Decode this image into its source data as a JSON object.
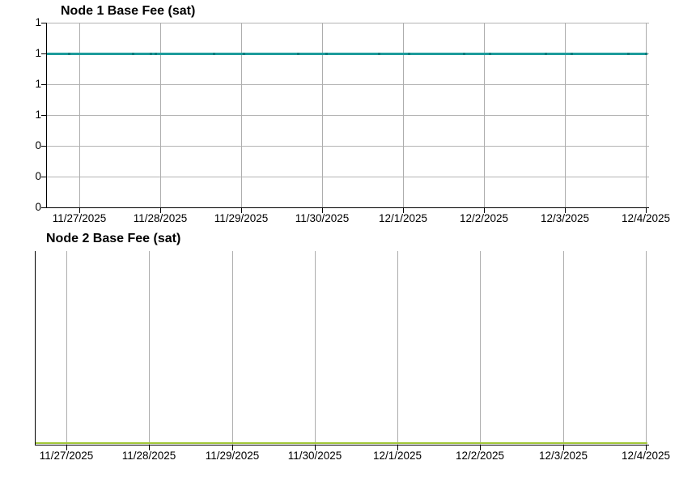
{
  "page": {
    "background": "#ffffff",
    "text_color": "#000000",
    "grid_color": "#b3b3b3",
    "axis_color": "#000000"
  },
  "chart_data": [
    {
      "type": "line",
      "id": "node1-base-fee",
      "title": "Node 1 Base Fee (sat)",
      "x": [
        "11/27/2025",
        "11/28/2025",
        "11/29/2025",
        "11/30/2025",
        "12/1/2025",
        "12/2/2025",
        "12/3/2025",
        "12/4/2025"
      ],
      "series": [
        {
          "name": "Node 1 Base Fee",
          "values": [
            1,
            1,
            1,
            1,
            1,
            1,
            1,
            1
          ],
          "color": "#1d9c9c",
          "marker_color": "#0d7d7d",
          "marker_positions_fraction": [
            0.038,
            0.144,
            0.173,
            0.182,
            0.279,
            0.328,
            0.418,
            0.466,
            0.553,
            0.603,
            0.695,
            0.738,
            0.83,
            0.873,
            0.968,
            0.997
          ]
        }
      ],
      "xlabel": "",
      "ylabel": "",
      "ylim": [
        0,
        1.2
      ],
      "y_tick_labels_top_to_bottom": [
        "1",
        "1",
        "1",
        "1",
        "0",
        "0",
        "0"
      ],
      "grid": {
        "horizontal": true,
        "vertical": true
      },
      "legend_position": "none"
    },
    {
      "type": "line",
      "id": "node2-base-fee",
      "title": "Node 2 Base Fee (sat)",
      "x": [
        "11/27/2025",
        "11/28/2025",
        "11/29/2025",
        "11/30/2025",
        "12/1/2025",
        "12/2/2025",
        "12/3/2025",
        "12/4/2025"
      ],
      "series": [
        {
          "name": "Node 2 Base Fee",
          "values": [
            0,
            0,
            0,
            0,
            0,
            0,
            0,
            0
          ],
          "color": "#a2c838",
          "marker_positions_fraction": []
        }
      ],
      "xlabel": "",
      "ylabel": "",
      "ylim": [
        0,
        1
      ],
      "y_tick_labels_top_to_bottom": [],
      "grid": {
        "horizontal": false,
        "vertical": true
      },
      "legend_position": "none"
    }
  ]
}
